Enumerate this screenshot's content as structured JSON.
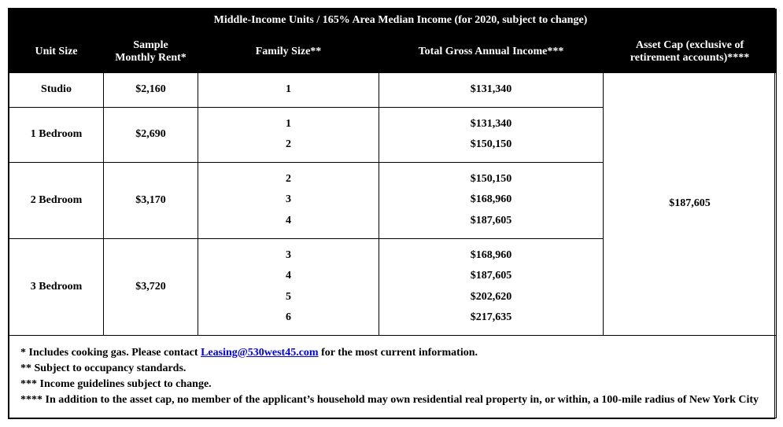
{
  "title": "Middle-Income Units / 165% Area Median Income (for 2020, subject to change)",
  "headers": {
    "unit": "Unit Size",
    "rent": "Sample\nMonthly Rent*",
    "family": "Family Size**",
    "income": "Total Gross Annual Income***",
    "asset": "Asset Cap (exclusive of\nretirement accounts)****"
  },
  "rows": [
    {
      "unit": "Studio",
      "rent": "$2,160",
      "family": "1",
      "income": "$131,340"
    },
    {
      "unit": "1 Bedroom",
      "rent": "$2,690",
      "family": "1\n2",
      "income": "$131,340\n$150,150"
    },
    {
      "unit": "2 Bedroom",
      "rent": "$3,170",
      "family": "2\n3\n4",
      "income": "$150,150\n$168,960\n$187,605"
    },
    {
      "unit": "3 Bedroom",
      "rent": "$3,720",
      "family": "3\n4\n5\n6",
      "income": "$168,960\n$187,605\n$202,620\n$217,635"
    }
  ],
  "asset_cap": "$187,605",
  "footnotes": {
    "f1_pre": "* Includes cooking gas. Please contact ",
    "f1_link_text": "Leasing@530west45.com",
    "f1_link_href": "mailto:Leasing@530west45.com",
    "f1_post": " for the most current information.",
    "f2": "** Subject to occupancy standards.",
    "f3": "*** Income guidelines subject to change.",
    "f4": "**** In addition to the asset cap, no member of the applicant’s household may own residential real property in, or within, a 100-mile radius of New York City"
  },
  "colors": {
    "header_bg": "#000000",
    "header_fg": "#ffffff",
    "border": "#000000",
    "link": "#0000ee",
    "background": "#ffffff"
  }
}
